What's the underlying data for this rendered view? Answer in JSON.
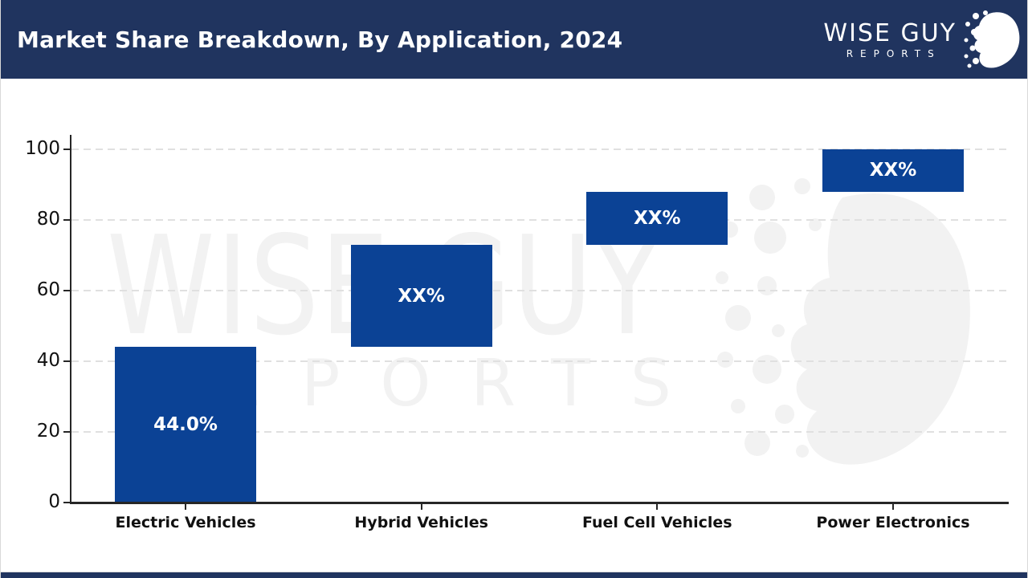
{
  "header": {
    "title": "Market Share Breakdown, By Application, 2024",
    "bg_color": "#20345f",
    "logo": {
      "line1": "WISE GUY",
      "line2": "REPORTS"
    }
  },
  "watermark": {
    "line1": "WISE GUY",
    "line2": "REPORTS"
  },
  "chart_data": {
    "type": "bar",
    "subtype": "waterfall-stacked-percentage",
    "title": "Market Share Breakdown, By Application, 2024",
    "categories": [
      "Electric Vehicles",
      "Hybrid Vehicles",
      "Fuel Cell Vehicles",
      "Power Electronics"
    ],
    "segments": [
      {
        "category": "Electric Vehicles",
        "start": 0,
        "end": 44,
        "value_label": "44.0%"
      },
      {
        "category": "Hybrid Vehicles",
        "start": 44,
        "end": 73,
        "value_label": "XX%"
      },
      {
        "category": "Fuel Cell Vehicles",
        "start": 73,
        "end": 88,
        "value_label": "XX%"
      },
      {
        "category": "Power Electronics",
        "start": 88,
        "end": 100,
        "value_label": "XX%"
      }
    ],
    "xlabel": "",
    "ylabel": "",
    "yticks": [
      0,
      20,
      40,
      60,
      80,
      100
    ],
    "ylim": [
      0,
      104
    ],
    "grid": "horizontal dashed",
    "legend": "none",
    "bar_color": "#0b4295",
    "bar_label_color": "#ffffff",
    "axis_color": "#262626",
    "grid_color": "#e0e0e0"
  }
}
